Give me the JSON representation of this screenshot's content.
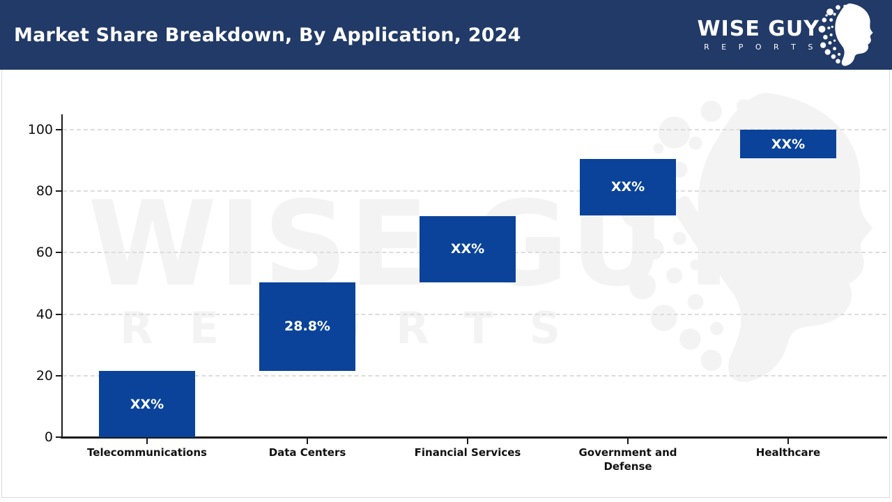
{
  "header": {
    "title": "Market Share Breakdown, By Application, 2024",
    "logo": {
      "line1": "WISE GUY",
      "line2": "R E P O R T S"
    }
  },
  "watermark": {
    "line1": "WISE GUY",
    "line2": "REPORTS"
  },
  "colors": {
    "header_bg": "#213a67",
    "bar": "#0a4399",
    "gridline": "#dcdcdc",
    "axis": "#1a1a1a",
    "watermark": "#f3f3f3",
    "bar_label": "#ffffff"
  },
  "chart_data": {
    "type": "bar",
    "subtype": "waterfall",
    "title": "Market Share Breakdown, By Application, 2024",
    "xlabel": "",
    "ylabel": "",
    "ylim": [
      0,
      105
    ],
    "y_ticks": [
      "0",
      "20",
      "40",
      "60",
      "80",
      "100"
    ],
    "grid": "horizontal-dashed",
    "legend": "none",
    "categories": [
      "Telecommunications",
      "Data Centers",
      "Financial Services",
      "Government and Defense",
      "Healthcare"
    ],
    "bars": [
      {
        "category": "Telecommunications",
        "lines": [
          "Telecommunications"
        ],
        "start": 0,
        "end": 21.5,
        "value_label": "XX%"
      },
      {
        "category": "Data Centers",
        "lines": [
          "Data Centers"
        ],
        "start": 21.6,
        "end": 50.4,
        "value_label": "28.8%"
      },
      {
        "category": "Financial Services",
        "lines": [
          "Financial Services"
        ],
        "start": 50.4,
        "end": 71.9,
        "value_label": "XX%"
      },
      {
        "category": "Government and Defense",
        "lines": [
          "Government and",
          "Defense"
        ],
        "start": 72.1,
        "end": 90.5,
        "value_label": "XX%"
      },
      {
        "category": "Healthcare",
        "lines": [
          "Healthcare"
        ],
        "start": 90.7,
        "end": 100,
        "value_label": "XX%"
      }
    ]
  }
}
